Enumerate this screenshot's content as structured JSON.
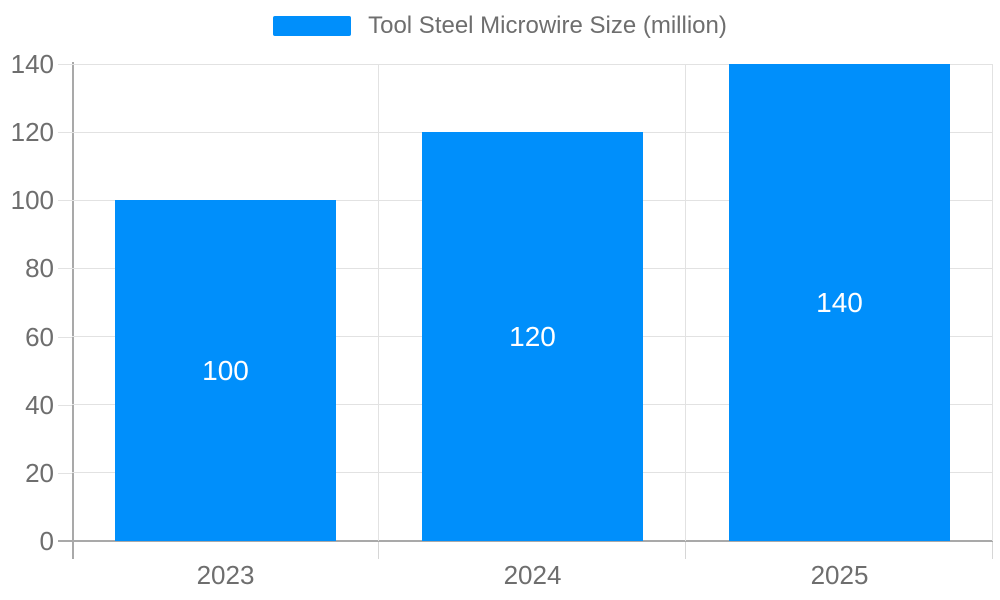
{
  "chart_data": {
    "type": "bar",
    "title": "Tool Steel Microwire Size (million)",
    "categories": [
      "2023",
      "2024",
      "2025"
    ],
    "series": [
      {
        "name": "Tool Steel Microwire Size (million)",
        "values": [
          100,
          120,
          140
        ]
      }
    ],
    "bar_labels": [
      "100",
      "120",
      "140"
    ],
    "xlabel": "",
    "ylabel": "",
    "ylim": [
      0,
      140
    ],
    "y_ticks": [
      0,
      20,
      40,
      60,
      80,
      100,
      120,
      140
    ],
    "y_tick_labels": [
      "0",
      "20",
      "40",
      "60",
      "80",
      "100",
      "120",
      "140"
    ],
    "grid": true,
    "legend_position": "top",
    "colors": {
      "bar": "#008FFB",
      "bar_label_text": "#ffffff",
      "axis_text": "#6e6e6e",
      "grid_line": "#e2e2e2",
      "axis_line": "#a9a9a9",
      "minor_tick": "#d6d6d6",
      "background": "#ffffff"
    }
  },
  "legend": {
    "label": "Tool Steel Microwire Size (million)"
  }
}
